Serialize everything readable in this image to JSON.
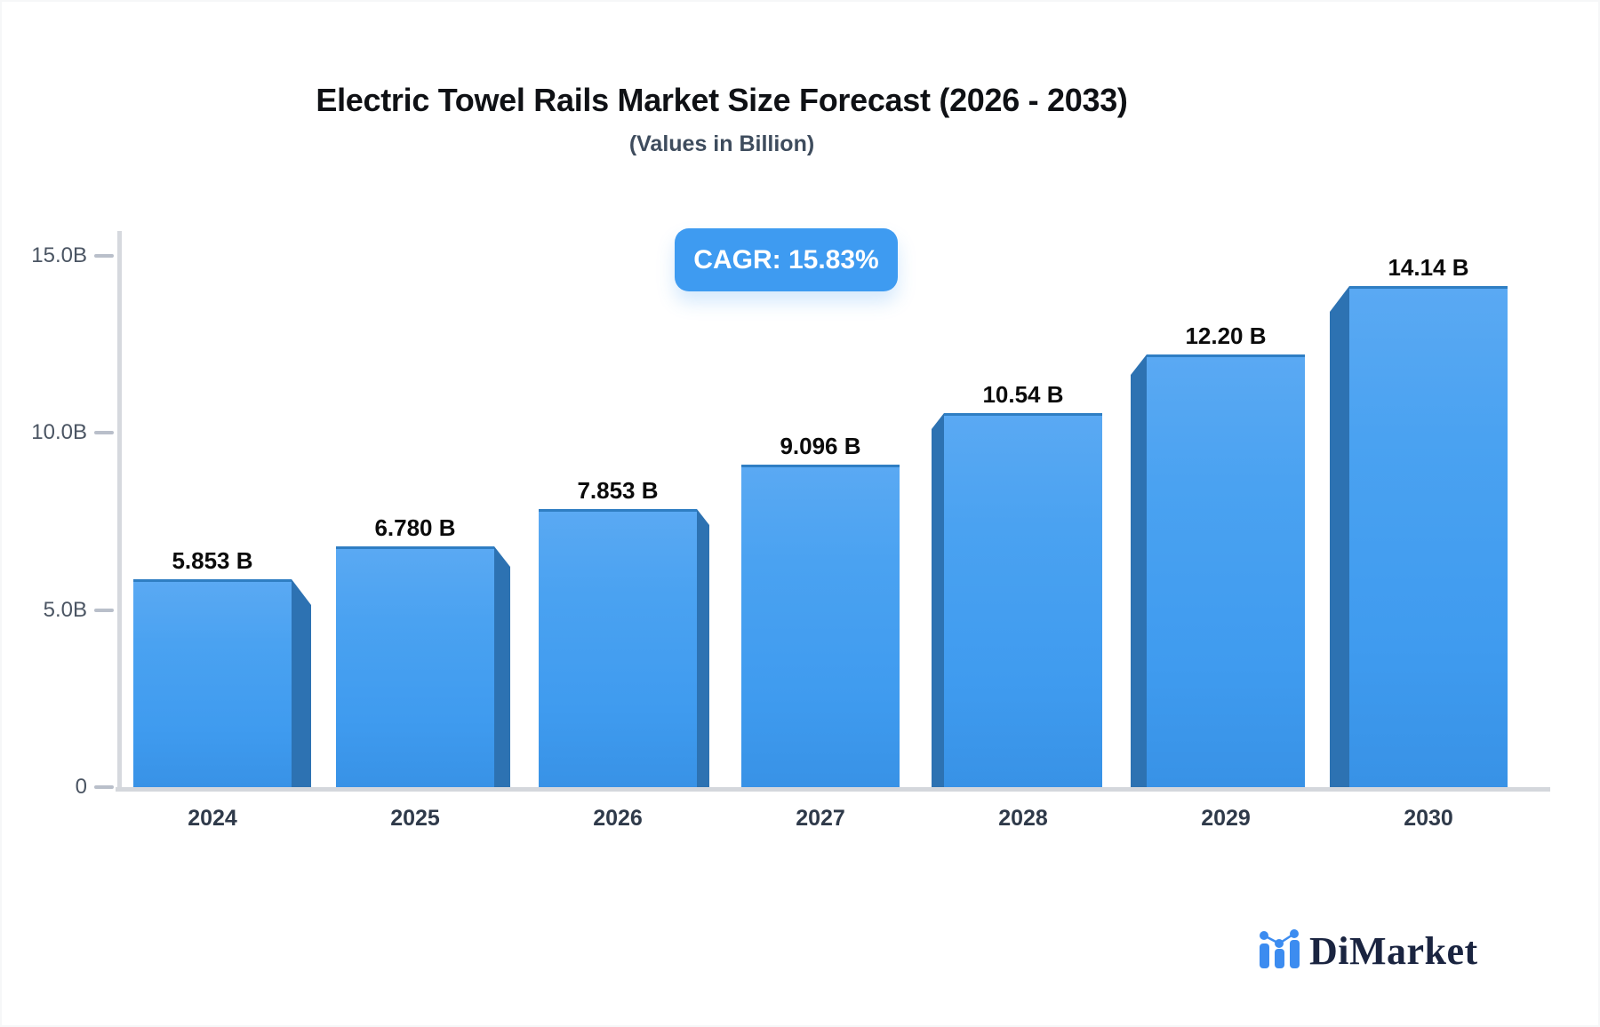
{
  "header": {
    "title": "Electric Towel Rails Market Size Forecast (2026 - 2033)",
    "subtitle": "(Values in Billion)",
    "cagr_badge": "CAGR: 15.83%"
  },
  "chart_data": {
    "type": "bar",
    "title": "Electric Towel Rails Market Size Forecast (2026 - 2033)",
    "subtitle": "(Values in Billion)",
    "cagr_percent": "15.83%",
    "categories": [
      "2024",
      "2025",
      "2026",
      "2027",
      "2028",
      "2029",
      "2030"
    ],
    "values": [
      5.853,
      6.78,
      7.853,
      9.096,
      10.54,
      12.2,
      14.14
    ],
    "value_labels": [
      "5.853 B",
      "6.780 B",
      "7.853 B",
      "9.096 B",
      "10.54 B",
      "12.20 B",
      "14.14 B"
    ],
    "yticks": [
      {
        "label": "0",
        "value": 0
      },
      {
        "label": "5.0B",
        "value": 5
      },
      {
        "label": "10.0B",
        "value": 10
      },
      {
        "label": "15.0B",
        "value": 15
      }
    ],
    "ylim": [
      0,
      15
    ],
    "xlabel": "",
    "ylabel": "",
    "grid": false,
    "legend": false,
    "bar_color": "#3E9CF0",
    "bar_side_color": "#2D72B2",
    "axis_color": "#D5D8DD"
  },
  "branding": {
    "logo_text": "DiMarket",
    "logo_icon": "bar-chart-sparkline-icon",
    "logo_blue": "#3C8CF0",
    "logo_navy": "#1A2440"
  }
}
